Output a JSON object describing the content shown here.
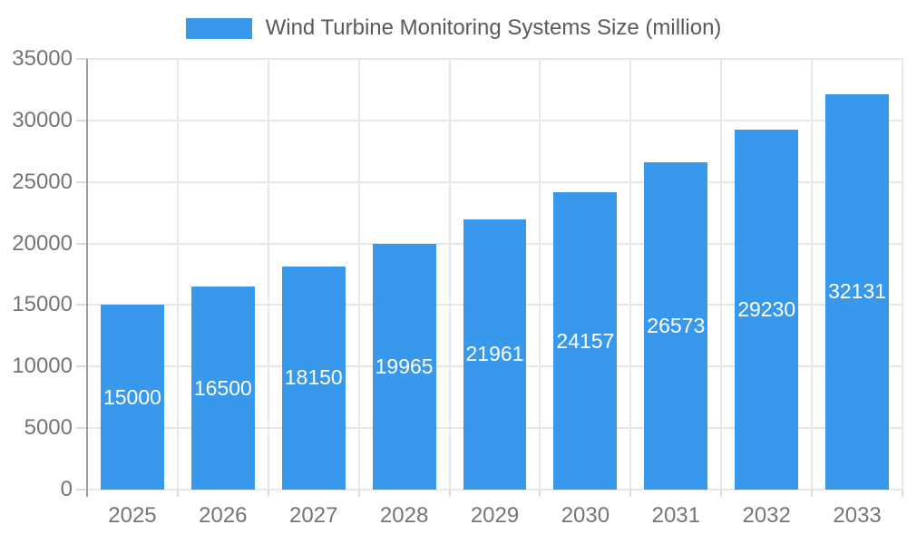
{
  "legend": {
    "label": "Wind Turbine Monitoring Systems Size (million)",
    "swatch_color": "#3898ec"
  },
  "chart_data": {
    "type": "bar",
    "title": "Wind Turbine Monitoring Systems Size (million)",
    "categories": [
      "2025",
      "2026",
      "2027",
      "2028",
      "2029",
      "2030",
      "2031",
      "2032",
      "2033"
    ],
    "values": [
      15000,
      16500,
      18150,
      19965,
      21961,
      24157,
      26573,
      29230,
      32131
    ],
    "xlabel": "",
    "ylabel": "",
    "ylim": [
      0,
      35000
    ],
    "y_ticks": [
      0,
      5000,
      10000,
      15000,
      20000,
      25000,
      30000,
      35000
    ],
    "grid": "on",
    "legend_position": "top-center",
    "series_color": "#3898ec",
    "value_label_color": "#ffffff",
    "axis_text_color": "#757575",
    "legend_text_color": "#5a5a5a",
    "gridline_color": "#e7e7e7",
    "axis_line_color": "#9e9e9e"
  }
}
